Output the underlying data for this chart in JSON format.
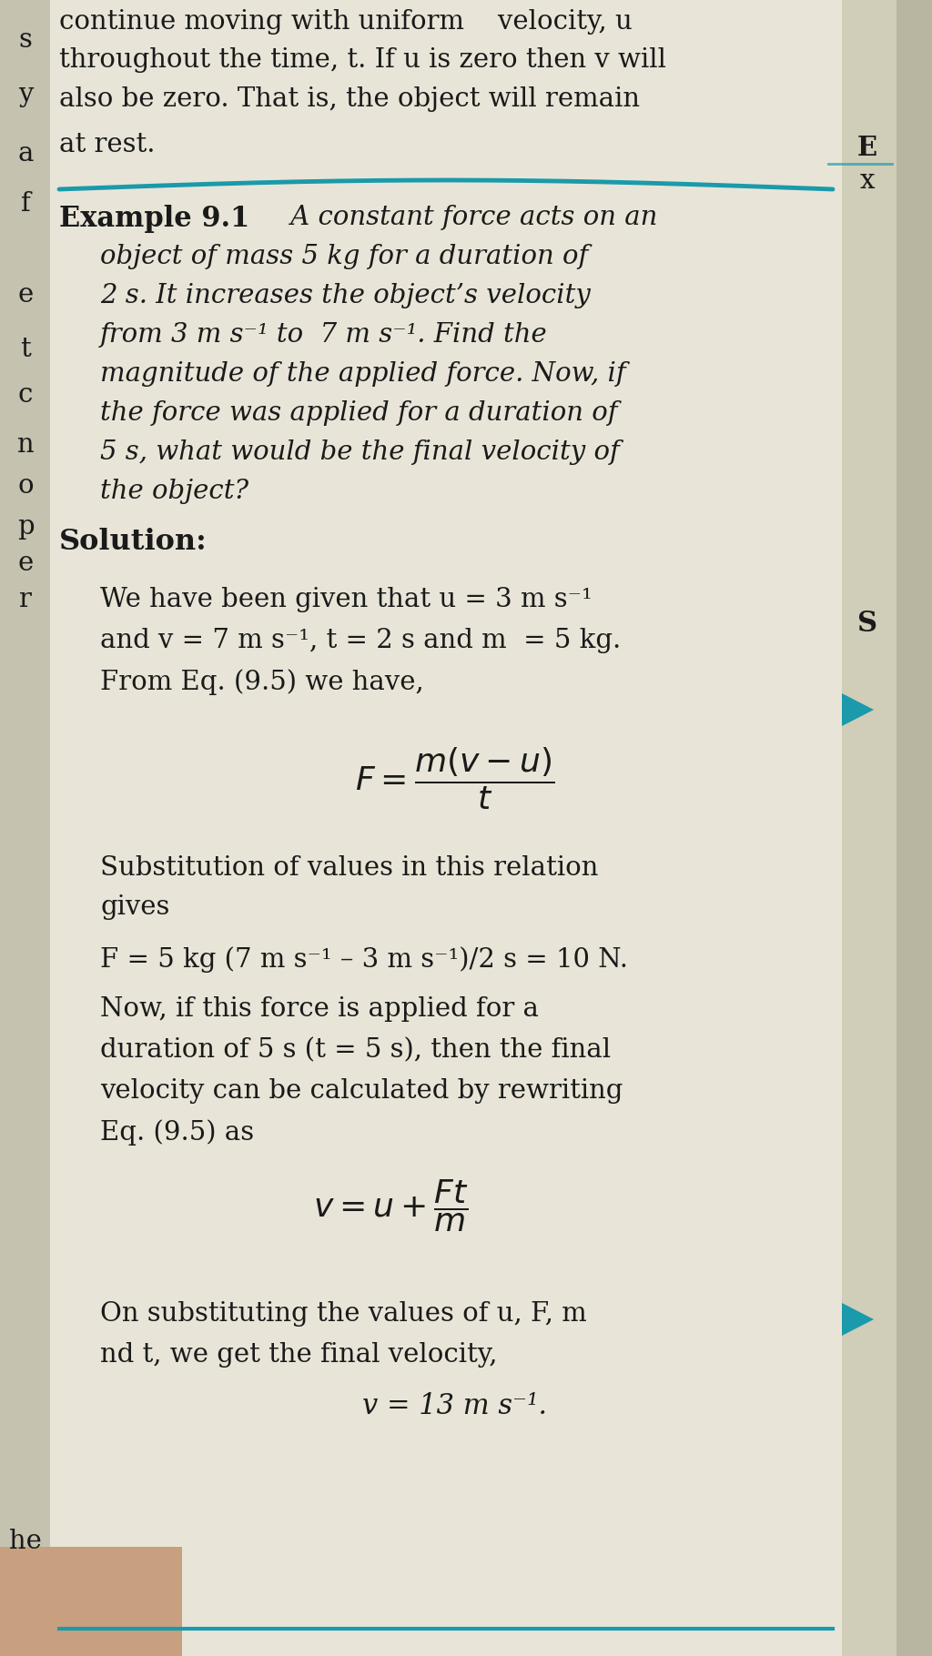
{
  "bg_color_main": "#e8e5d8",
  "bg_color_left": "#c5c2b0",
  "bg_color_right": "#d0cdb8",
  "bg_color_far_right": "#b8b5a0",
  "text_color": "#1a1a1a",
  "line_color": "#1a9aaa",
  "hand_color": "#c8a080",
  "top_lines": [
    "continue moving with uniform    velocity, u",
    "throughout the time, t. If u is zero then v will",
    "also be zero. That is, the object will remain",
    "at rest."
  ],
  "left_letters": [
    "s",
    "y",
    "a",
    "f",
    "",
    "e",
    "t",
    "c",
    "n",
    "o",
    "p",
    "e",
    "r"
  ],
  "right_ex_letters": [
    "E",
    "x"
  ],
  "right_s_letter": "S",
  "example_bold": "Example 9.1",
  "example_italic_first": " A constant force acts on an",
  "example_lines": [
    "    object of mass 5 kg for a duration of",
    "    2 s. It increases the object’s velocity",
    "    from 3 m s⁻¹ to  7 m s⁻¹. Find the",
    "    magnitude of the applied force. Now, if",
    "    the force was applied for a duration of",
    "    5 s, what would be the final velocity of",
    "    the object?"
  ],
  "solution_label": "Solution:",
  "sol_para1": [
    "We have been given that u = 3 m s⁻¹",
    "and v = 7 m s⁻¹, t = 2 s and m  = 5 kg.",
    "From Eq. (9.5) we have,"
  ],
  "sub_text": [
    "Substitution of values in this relation",
    "gives"
  ],
  "calc_line": "F = 5 kg (7 m s⁻¹ – 3 m s⁻¹)/2 s = 10 N.",
  "now_lines": [
    "Now, if this force is applied for a",
    "duration of 5 s (t = 5 s), then the final",
    "velocity can be calculated by rewriting",
    "Eq. (9.5) as"
  ],
  "final_lines": [
    "On substituting the values of u, F, m",
    "nd t, we get the final velocity,",
    "v = 13 m s⁻¹."
  ],
  "bottom_he": "he"
}
